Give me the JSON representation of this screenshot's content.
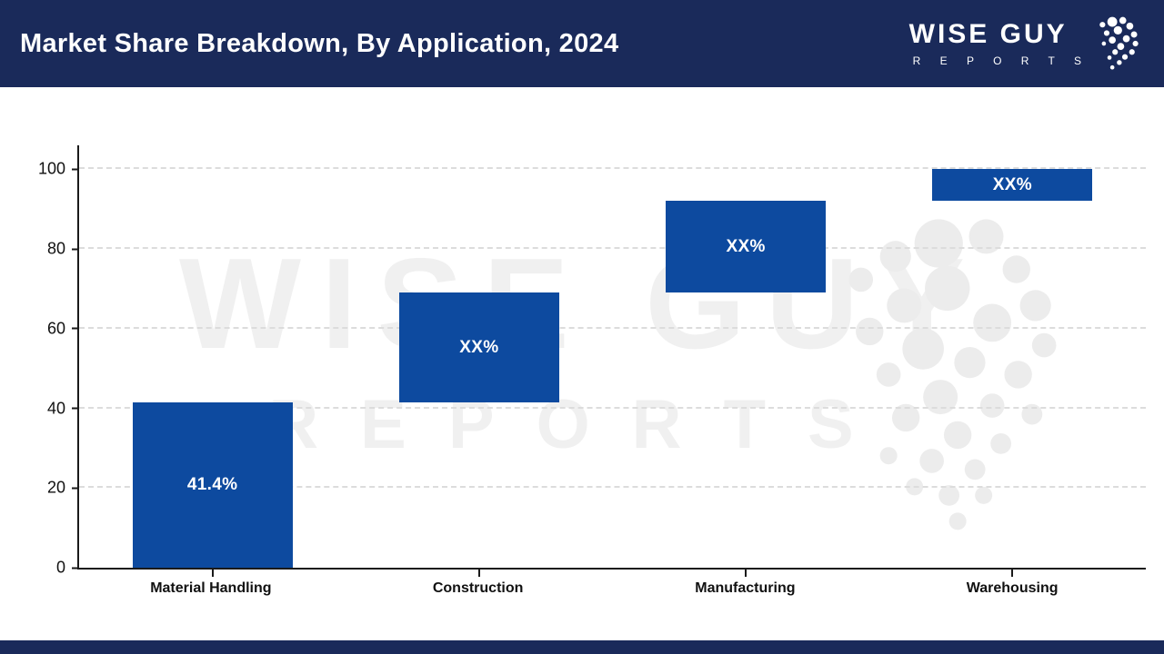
{
  "header": {
    "title": "Market Share Breakdown, By Application, 2024",
    "background_color": "#1a2a5a"
  },
  "logo": {
    "line1": "WISE GUY",
    "line2": "R E P O R T S"
  },
  "watermark": {
    "line1": "WISE GUY",
    "line2": "REPORTS"
  },
  "chart_data": {
    "type": "bar",
    "subtype": "floating-waterfall",
    "title": "Market Share Breakdown, By Application, 2024",
    "categories": [
      "Material Handling",
      "Construction",
      "Manufacturing",
      "Warehousing"
    ],
    "ranges": [
      [
        0,
        41.4
      ],
      [
        41.4,
        69
      ],
      [
        69,
        92
      ],
      [
        92,
        100
      ]
    ],
    "segment_values": [
      41.4,
      27.6,
      23,
      8
    ],
    "bar_labels": [
      "41.4%",
      "XX%",
      "XX%",
      "XX%"
    ],
    "yticks": [
      0,
      20,
      40,
      60,
      80,
      100
    ],
    "ylim": [
      0,
      106
    ],
    "xlabel": "",
    "ylabel": "",
    "grid": "horizontal-dashed",
    "legend": "none",
    "bar_color": "#0d4a9f",
    "bar_label_color": "#ffffff",
    "axis_color": "#1a1a1a",
    "grid_color": "#dcdcdc"
  }
}
